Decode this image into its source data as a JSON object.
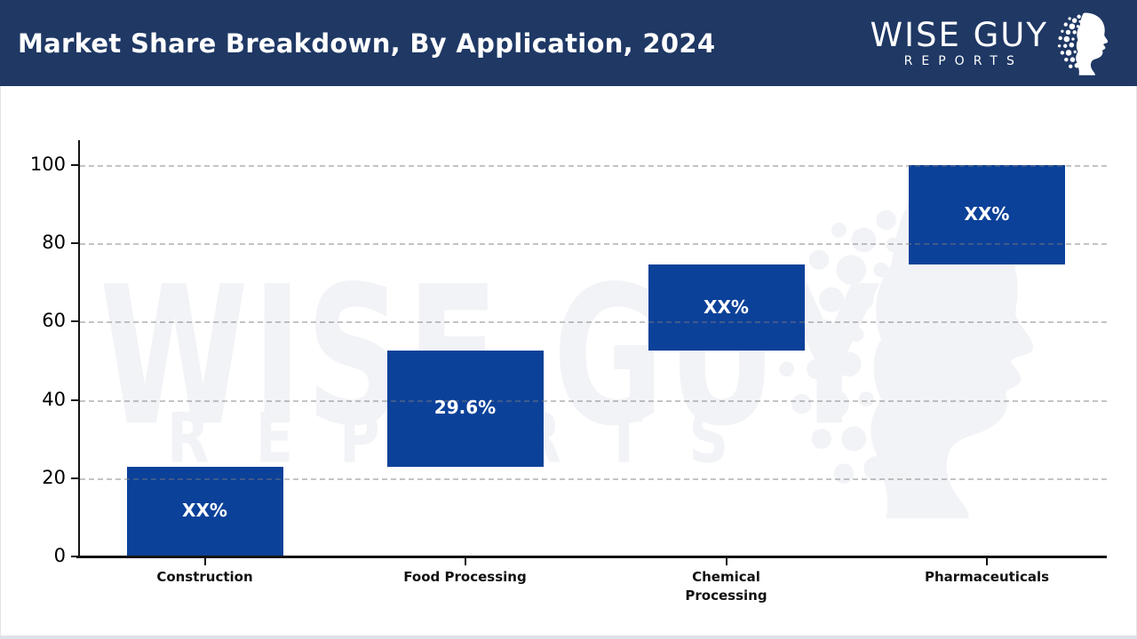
{
  "header": {
    "title": "Market Share Breakdown, By Application, 2024",
    "logo": {
      "line1": "WISE GUY",
      "line2": "REPORTS"
    }
  },
  "watermark": {
    "line1": "WISE GUY",
    "line2": "REPORTS"
  },
  "colors": {
    "header_bg": "#1f3864",
    "bar": "#0c4199",
    "axis": "#131313",
    "grid_dash": "#bdbdbd",
    "watermark": "#f2f3f6",
    "bar_label_text": "#ffffff"
  },
  "chart_data": {
    "type": "bar",
    "subtype": "waterfall-floating-segments",
    "title": "Market Share Breakdown, By Application, 2024",
    "categories": [
      "Construction",
      "Food Processing",
      "Chemical Processing",
      "Pharmaceuticals"
    ],
    "category_label_lines": [
      [
        "Construction"
      ],
      [
        "Food Processing"
      ],
      [
        "Chemical",
        "Processing"
      ],
      [
        "Pharmaceuticals"
      ]
    ],
    "segments": [
      {
        "category": "Construction",
        "start": 0,
        "end": 23,
        "label": "XX%"
      },
      {
        "category": "Food Processing",
        "start": 23,
        "end": 52.6,
        "label": "29.6%"
      },
      {
        "category": "Chemical Processing",
        "start": 52.6,
        "end": 74.6,
        "label": "XX%"
      },
      {
        "category": "Pharmaceuticals",
        "start": 74.6,
        "end": 100,
        "label": "XX%"
      }
    ],
    "yticks": [
      0,
      20,
      40,
      60,
      80,
      100
    ],
    "ylim": [
      0,
      106
    ],
    "xlabel": "",
    "ylabel": "",
    "grid": "horizontal-dashed, drawn over bars",
    "legend": "none"
  }
}
